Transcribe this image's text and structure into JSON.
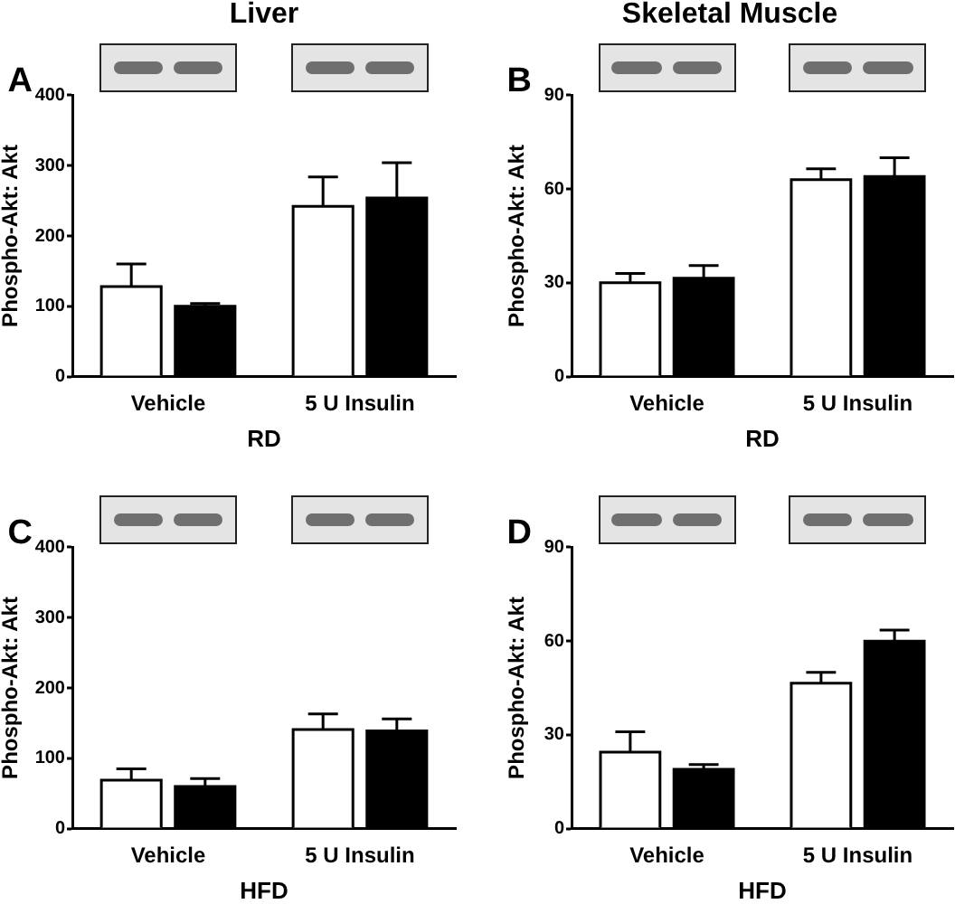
{
  "chart_data": [
    {
      "type": "bar",
      "title": "Liver",
      "xlabel": "RD",
      "ylabel": "Phospho-Akt: Akt",
      "annotations": [
        "A"
      ],
      "categories": [
        "Vehicle",
        "5 U Insulin"
      ],
      "series": [
        {
          "color": "#ffffff",
          "values": [
            128,
            242
          ],
          "errors": [
            [
              128,
              160
            ],
            [
              242,
              284
            ]
          ]
        },
        {
          "color": "#000000",
          "values": [
            100,
            254
          ],
          "errors": [
            [
              100,
              104
            ],
            [
              254,
              304
            ]
          ]
        }
      ],
      "ylim": [
        0,
        400
      ],
      "yticks": [
        0,
        100,
        200,
        300,
        400
      ]
    },
    {
      "type": "bar",
      "title": "Skeletal Muscle",
      "xlabel": "RD",
      "ylabel": "Phospho-Akt: Akt",
      "annotations": [
        "B"
      ],
      "categories": [
        "Vehicle",
        "5 U Insulin"
      ],
      "series": [
        {
          "color": "#ffffff",
          "values": [
            30,
            63
          ],
          "errors": [
            [
              30,
              33
            ],
            [
              63,
              66.5
            ]
          ]
        },
        {
          "color": "#000000",
          "values": [
            31.5,
            64
          ],
          "errors": [
            [
              31.5,
              35.5
            ],
            [
              64,
              70
            ]
          ]
        }
      ],
      "ylim": [
        0,
        90
      ],
      "yticks": [
        0,
        30,
        60,
        90
      ]
    },
    {
      "type": "bar",
      "xlabel": "HFD",
      "ylabel": "Phospho-Akt: Akt",
      "annotations": [
        "C"
      ],
      "categories": [
        "Vehicle",
        "5 U Insulin"
      ],
      "series": [
        {
          "color": "#ffffff",
          "values": [
            69,
            141
          ],
          "errors": [
            [
              69,
              85
            ],
            [
              141,
              163
            ]
          ]
        },
        {
          "color": "#000000",
          "values": [
            60,
            139
          ],
          "errors": [
            [
              60,
              71
            ],
            [
              139,
              156
            ]
          ]
        }
      ],
      "ylim": [
        0,
        400
      ],
      "yticks": [
        0,
        100,
        200,
        300,
        400
      ]
    },
    {
      "type": "bar",
      "xlabel": "HFD",
      "ylabel": "Phospho-Akt: Akt",
      "annotations": [
        "D"
      ],
      "categories": [
        "Vehicle",
        "5 U Insulin"
      ],
      "series": [
        {
          "color": "#ffffff",
          "values": [
            24.5,
            46.5
          ],
          "errors": [
            [
              24.5,
              31
            ],
            [
              46.5,
              50
            ]
          ]
        },
        {
          "color": "#000000",
          "values": [
            19,
            60
          ],
          "errors": [
            [
              19,
              20.5
            ],
            [
              60,
              63.5
            ]
          ]
        }
      ],
      "ylim": [
        0,
        90
      ],
      "yticks": [
        0,
        30,
        60,
        90
      ]
    }
  ]
}
